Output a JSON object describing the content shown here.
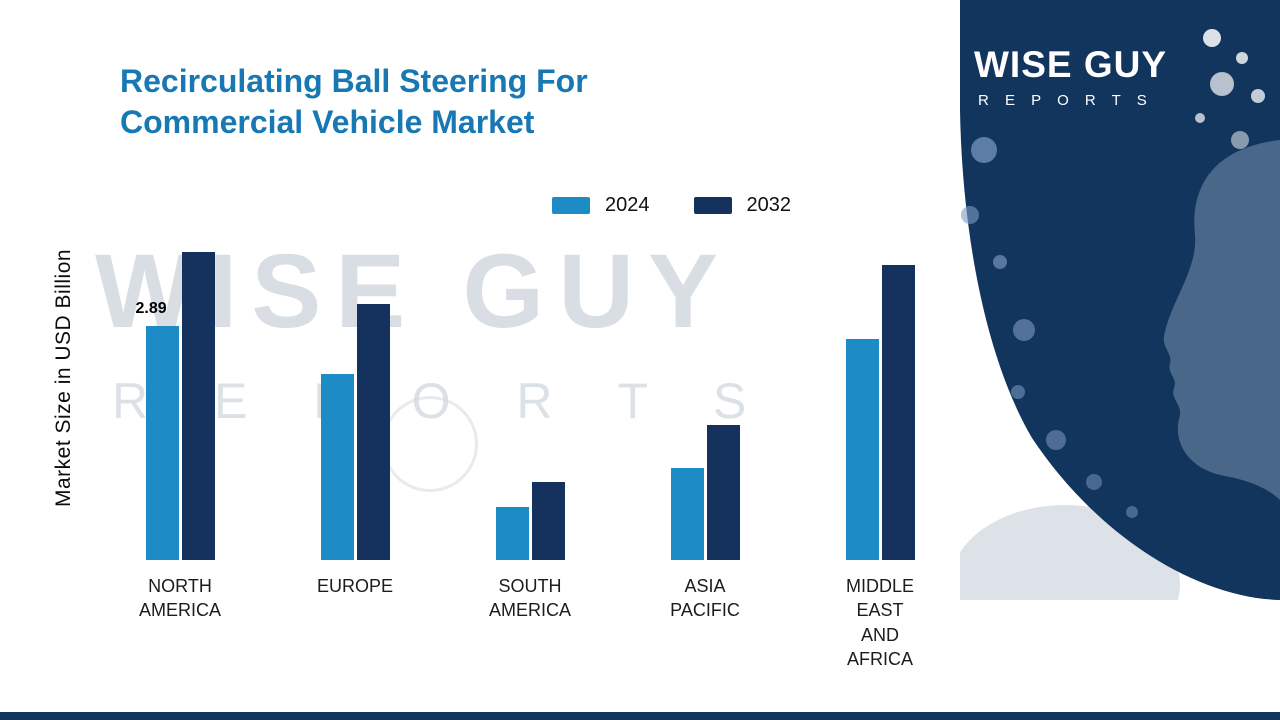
{
  "page": {
    "title": "Recirculating Ball Steering For Commercial Vehicle Market"
  },
  "logo": {
    "title": "WISE GUY",
    "subtitle": "R E P O R T S"
  },
  "watermark": {
    "line1": "WISE GUY",
    "line2": "R E P O R T S"
  },
  "colors": {
    "series_2024": "#1d8cc6",
    "series_2032": "#15325f",
    "title_blue": "#1878b4",
    "navy_panel": "#12355e"
  },
  "chart_data": {
    "type": "bar",
    "title": "Recirculating Ball Steering For Commercial Vehicle Market",
    "xlabel": "",
    "ylabel": "Market Size in USD Billion",
    "ylim": [
      0,
      4.2
    ],
    "grid": false,
    "legend_position": "top",
    "categories": [
      "NORTH AMERICA",
      "EUROPE",
      "SOUTH AMERICA",
      "ASIA PACIFIC",
      "MIDDLE EAST AND AFRICA"
    ],
    "category_lines": [
      [
        "NORTH",
        "AMERICA"
      ],
      [
        "EUROPE"
      ],
      [
        "SOUTH",
        "AMERICA"
      ],
      [
        "ASIA",
        "PACIFIC"
      ],
      [
        "MIDDLE",
        "EAST",
        "AND",
        "AFRICA"
      ]
    ],
    "series": [
      {
        "name": "2024",
        "color": "#1d8cc6",
        "values": [
          2.89,
          2.3,
          0.65,
          1.14,
          2.73
        ]
      },
      {
        "name": "2032",
        "color": "#15325f",
        "values": [
          3.8,
          3.16,
          0.96,
          1.67,
          3.64
        ]
      }
    ],
    "annotations": [
      {
        "series": "2024",
        "category_index": 0,
        "text": "2.89"
      }
    ]
  }
}
